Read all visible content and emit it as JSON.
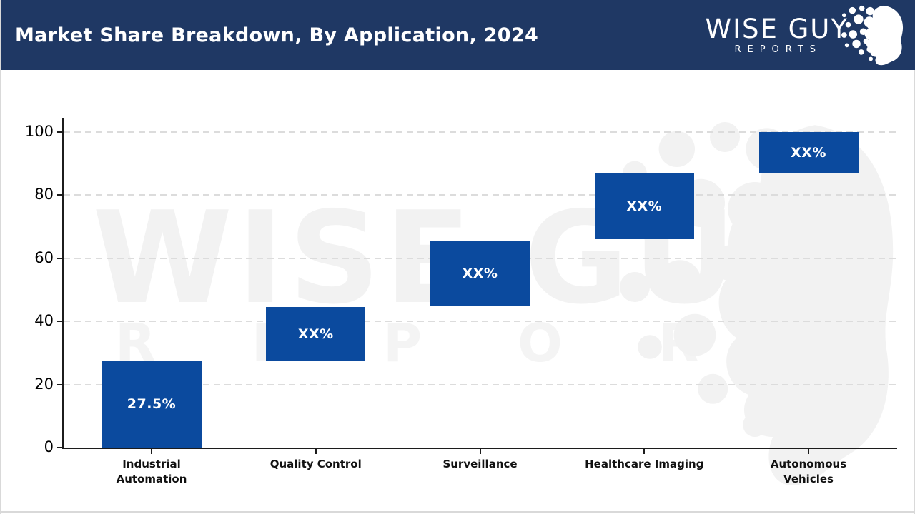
{
  "header": {
    "title": "Market Share Breakdown, By Application, 2024",
    "logo": {
      "line1": "WISE GUY",
      "line2": "REPORTS"
    }
  },
  "watermark": {
    "line1": "WISE GUY",
    "line2": "REPORTS"
  },
  "chart_data": {
    "type": "bar",
    "subtype": "waterfall",
    "title": "Market Share Breakdown, By Application, 2024",
    "categories": [
      [
        "Industrial",
        "Automation"
      ],
      [
        "Quality Control"
      ],
      [
        "Surveillance"
      ],
      [
        "Healthcare Imaging"
      ],
      [
        "Autonomous",
        "Vehicles"
      ]
    ],
    "bar_labels": [
      "27.5%",
      "XX%",
      "XX%",
      "XX%",
      "XX%"
    ],
    "bar_ranges": [
      [
        0,
        27.5
      ],
      [
        27.5,
        44.5
      ],
      [
        45,
        65.5
      ],
      [
        66,
        87
      ],
      [
        87,
        100
      ]
    ],
    "yticks": [
      0,
      20,
      40,
      60,
      80,
      100
    ],
    "ylim": [
      0,
      104.5
    ],
    "xlabel": "",
    "ylabel": "",
    "grid": "horizontal-dashed",
    "legend": "none"
  },
  "colors": {
    "header_bg": "#1F3864",
    "bar": "#0B4A9E",
    "bar_label": "#FFFFFF",
    "grid": "#DCDCDC",
    "axis": "#1C1C1C",
    "watermark": "#F2F2F2",
    "page_border": "#D9D9D9"
  }
}
